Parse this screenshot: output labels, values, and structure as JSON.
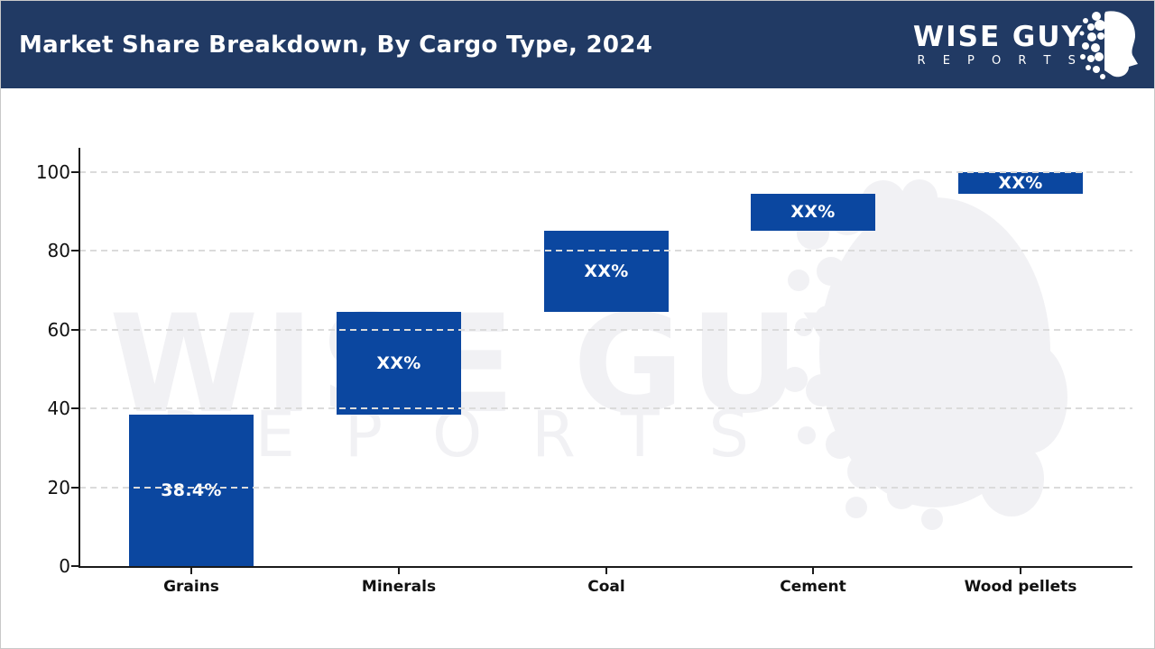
{
  "header": {
    "title": "Market Share Breakdown, By Cargo Type, 2024",
    "logo": {
      "name": "WISE GUY",
      "sub": "R E P O R T S"
    }
  },
  "watermark": {
    "line1": "WISE GUY",
    "line2": "R E P O R T S"
  },
  "colors": {
    "header_bg": "#213A64",
    "bar_fill": "#0B47A0",
    "grid": "#DBDBDB",
    "axis": "#1A1A1A",
    "bar_label_text": "#FFFFFF",
    "tick_label_text": "#111111",
    "watermark": "#F1F1F4",
    "canvas_bg": "#FFFFFF",
    "border": "#C9C9C9"
  },
  "chart_data": {
    "type": "bar",
    "subtype": "waterfall",
    "title": "Market Share Breakdown, By Cargo Type, 2024",
    "xlabel": "",
    "ylabel": "",
    "ylim": [
      0,
      106
    ],
    "yticks": [
      0,
      20,
      40,
      60,
      80,
      100
    ],
    "grid": "horizontal dashed, drawn over bars",
    "legend": "none",
    "categories": [
      "Grains",
      "Minerals",
      "Coal",
      "Cement",
      "Wood pellets"
    ],
    "bars": [
      {
        "category": "Grains",
        "start": 0,
        "end": 38.4,
        "value": 38.4,
        "label": "38.4%"
      },
      {
        "category": "Minerals",
        "start": 38.4,
        "end": 64.4,
        "value": 26.0,
        "label": "XX%"
      },
      {
        "category": "Coal",
        "start": 64.5,
        "end": 85.0,
        "value": 20.5,
        "label": "XX%"
      },
      {
        "category": "Cement",
        "start": 85.0,
        "end": 94.5,
        "value": 9.5,
        "label": "XX%"
      },
      {
        "category": "Wood pellets",
        "start": 94.4,
        "end": 100.0,
        "value": 5.6,
        "label": "XX%"
      }
    ],
    "bar_color": "#0B47A0"
  }
}
